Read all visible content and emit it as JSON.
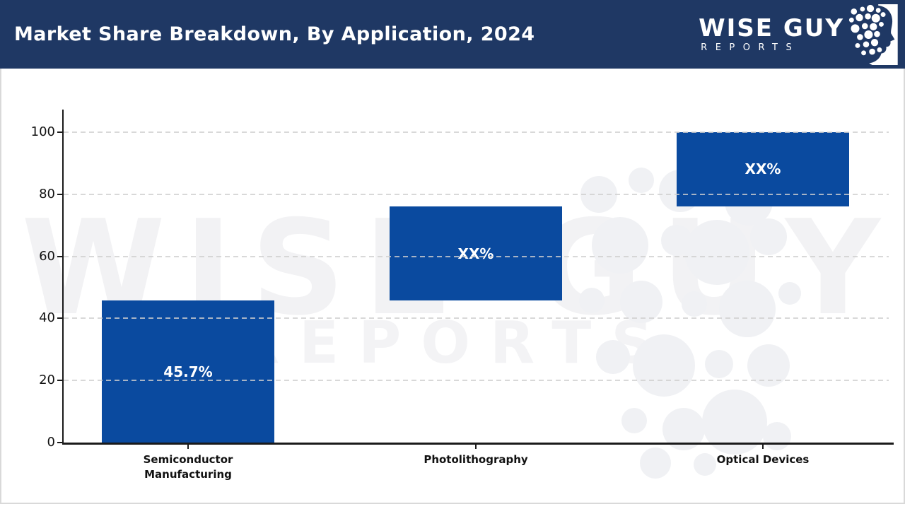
{
  "header": {
    "title": "Market Share Breakdown, By Application, 2024",
    "logo": {
      "line1": "WISE GUY",
      "line2": "REPORTS"
    }
  },
  "watermark": {
    "line1": "WISE GUY",
    "line2": "REPORTS"
  },
  "colors": {
    "header_bg": "#1f3864",
    "bar_blue": "#0a4a9f",
    "grid_gray": "#cfcfcf",
    "axis_black": "#1a1a1a",
    "panel_border": "#d9d9d9",
    "watermark_gray": "#f2f2f4"
  },
  "chart_data": {
    "type": "bar",
    "subtype": "floating-waterfall",
    "title": "Market Share Breakdown, By Application, 2024",
    "categories": [
      "Semiconductor Manufacturing",
      "Photolithography",
      "Optical Devices"
    ],
    "bars": [
      {
        "category": "Semiconductor Manufacturing",
        "start": 0,
        "end": 45.7,
        "label": "45.7%"
      },
      {
        "category": "Photolithography",
        "start": 45.7,
        "end": 76.1,
        "label": "XX%"
      },
      {
        "category": "Optical Devices",
        "start": 76.1,
        "end": 100,
        "label": "XX%"
      }
    ],
    "yticks": [
      0,
      20,
      40,
      60,
      80,
      100
    ],
    "ylim": [
      0,
      104
    ],
    "xlabel": "",
    "ylabel": "",
    "grid": true,
    "legend": false,
    "bar_color": "#0a4a9f",
    "label_color": "#ffffff"
  }
}
